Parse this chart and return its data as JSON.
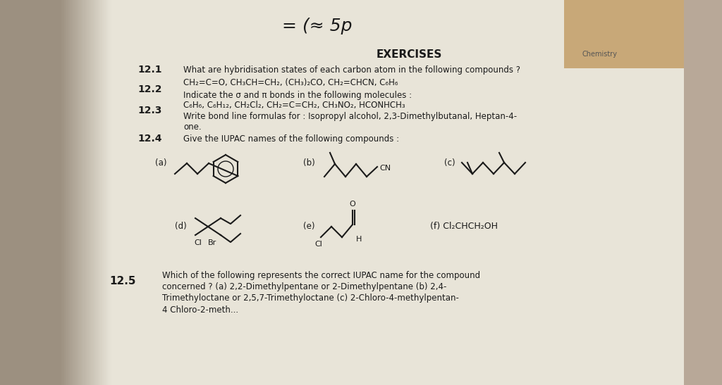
{
  "bg_color_top": "#b8b0a0",
  "bg_color_left": "#a0988a",
  "page_color": "#e8e4d8",
  "handwritten": "= (≈ 5p",
  "exercises_title": "EXERCISES",
  "chemistry_label": "Chemistry",
  "ex12_1_num": "12.1",
  "ex12_1_line1": "What are hybridisation states of each carbon atom in the following compounds ?",
  "ex12_2_num": "12.2",
  "ex12_2_line1": "CH₂=C=O, CH₃CH=CH₂, (CH₃)₂CO, CH₂=CHCN, C₆H₆",
  "ex12_2_line2": "Indicate the σ and π bonds in the following molecules :",
  "ex12_3_num": "12.3",
  "ex12_3_line1": "C₆H₆, C₆H₁₂, CH₂Cl₂, CH₂=C=CH₂, CH₃NO₂, HCONHCH₃",
  "ex12_3_line2": "Write bond line formulas for : Isopropyl alcohol, 2,3-Dimethylbutanal, Heptan-4-",
  "ex12_3_line3": "one.",
  "ex12_4_num": "12.4",
  "ex12_4_line1": "Give the IUPAC names of the following compounds :",
  "ex12_5_num": "12.5",
  "ex12_5_line1": "Which of the following represents the correct IUPAC name for the compound",
  "ex12_5_line2": "concerned ? (a) 2,2-Dimethylpentane or 2-Dimethylpentane (b) 2,4-",
  "ex12_5_line3": "Trimethyloctane or 2,5,7-Trimethyloctane (c) 2-Chloro-4-methylpentan-",
  "ex12_5_line4": "4 Chloro-2-meth...",
  "label_a": "(a)",
  "label_b": "(b)",
  "label_c": "(c)",
  "label_d": "(d)",
  "label_e": "(e)",
  "label_f": "(f) Cl₂CHCH₂OH",
  "cl_label": "Cl",
  "br_label": "Br",
  "cn_label": "CN",
  "o_label": "O",
  "h_label": "H",
  "cl2_label": "Cl",
  "line_color": "#1a1a1a",
  "text_color": "#1a1a1a",
  "num_color": "#1a1a1a"
}
